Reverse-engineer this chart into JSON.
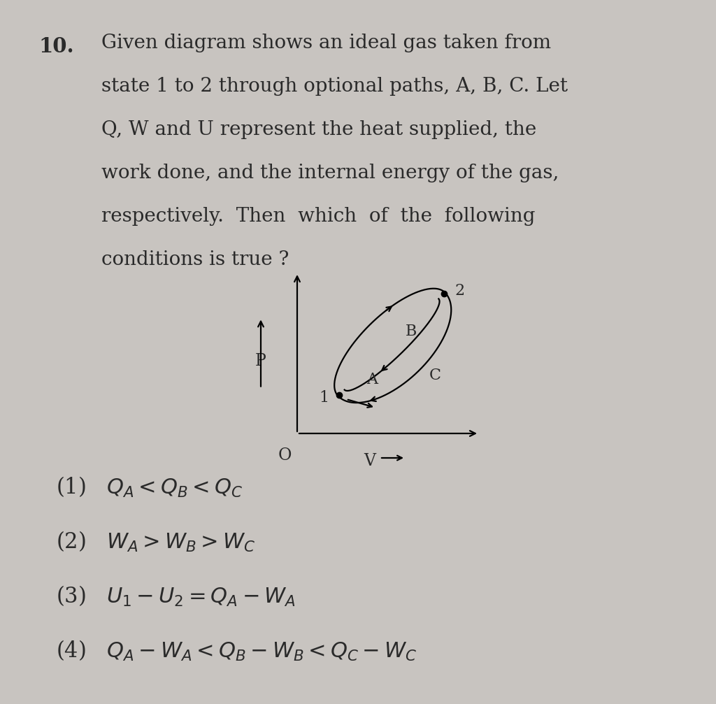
{
  "background_color": "#c8c4c0",
  "question_number": "10.",
  "question_lines": [
    "Given diagram shows an ideal gas taken from",
    "state 1 to 2 through optional paths, A, B, C. Let",
    "Q, W and U represent the heat supplied, the",
    "work done, and the internal energy of the gas,",
    "respectively.  Then  which  of  the  following",
    "conditions is true ?"
  ],
  "options": [
    "(1)   $Q_A < Q_B < Q_C$",
    "(2)   $W_A > W_B > W_C$",
    "(3)   $U_1 - U_2 = Q_A - W_A$",
    "(4)   $Q_A - W_A < Q_B - W_B < Q_C - W_C$"
  ],
  "text_color": "#2a2a2a",
  "diagram_lw": 1.6,
  "dot_size": 6
}
